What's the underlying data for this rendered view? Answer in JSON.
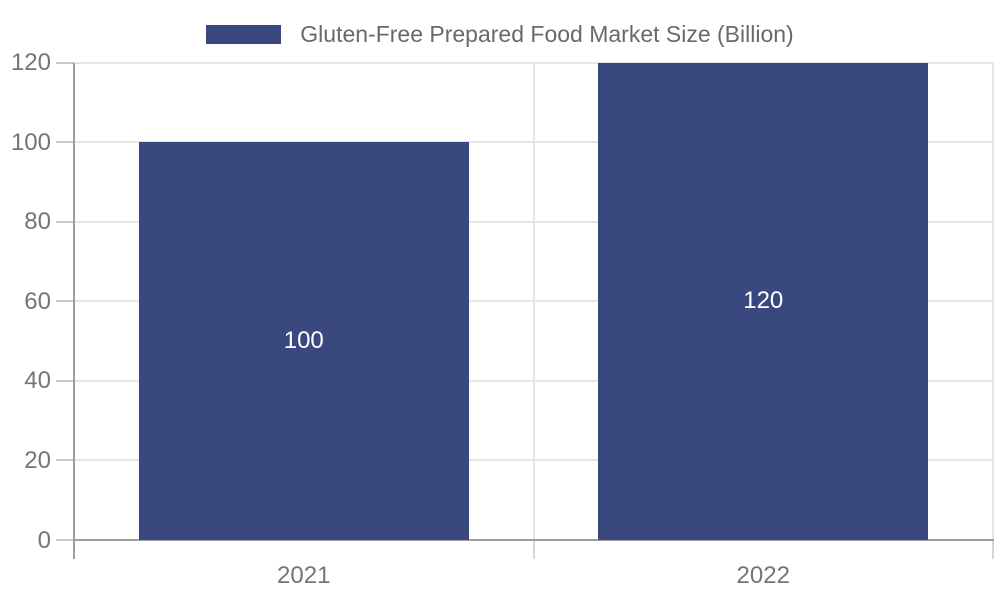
{
  "chart_data": {
    "type": "bar",
    "title": "Gluten-Free Prepared Food Market Size (Billion)",
    "series_name": "Gluten-Free Prepared Food Market Size (Billion)",
    "categories": [
      "2021",
      "2022"
    ],
    "values": [
      100,
      120
    ],
    "bar_value_labels": [
      "100",
      "120"
    ],
    "xlabel": "",
    "ylabel": "",
    "ylim": [
      0,
      120
    ],
    "yticks": [
      0,
      20,
      40,
      60,
      80,
      100,
      120
    ],
    "grid": true,
    "legend_position": "top-center",
    "colors": {
      "bar": "#39497f",
      "bar_label_text": "#ffffff",
      "tick_label_text": "#757575",
      "legend_text": "#696969",
      "gridline": "#e5e5e5",
      "axis_line": "#9e9e9e",
      "y_tick_mark": "#c9c9c9",
      "x_tick_mark": "#d6d6d6",
      "background": "#ffffff"
    }
  }
}
